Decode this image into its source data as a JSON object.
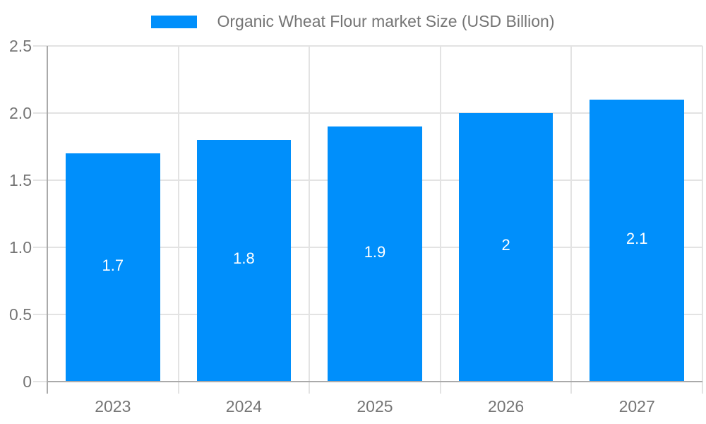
{
  "legend": {
    "label": "Organic Wheat Flour market Size (USD Billion)"
  },
  "chart_data": {
    "type": "bar",
    "title": "Organic Wheat Flour market Size (USD Billion)",
    "xlabel": "",
    "ylabel": "",
    "categories": [
      "2023",
      "2024",
      "2025",
      "2026",
      "2027"
    ],
    "series": [
      {
        "name": "Organic Wheat Flour market Size (USD Billion)",
        "values": [
          1.7,
          1.8,
          1.9,
          2,
          2.1
        ],
        "bar_labels": [
          "1.7",
          "1.8",
          "1.9",
          "2",
          "2.1"
        ]
      }
    ],
    "ylim": [
      0,
      2.5
    ],
    "yticks": [
      0,
      0.5,
      1.0,
      1.5,
      2.0,
      2.5
    ],
    "ytick_labels": [
      "0",
      "0.5",
      "1.0",
      "1.5",
      "2.0",
      "2.5"
    ],
    "grid": true,
    "legend_position": "top",
    "colors": {
      "bar": "#008FFB",
      "grid": "#e3e3e3",
      "axis": "#aaaaaa",
      "tick_text": "#757575",
      "bar_label_text": "#ffffff"
    }
  }
}
